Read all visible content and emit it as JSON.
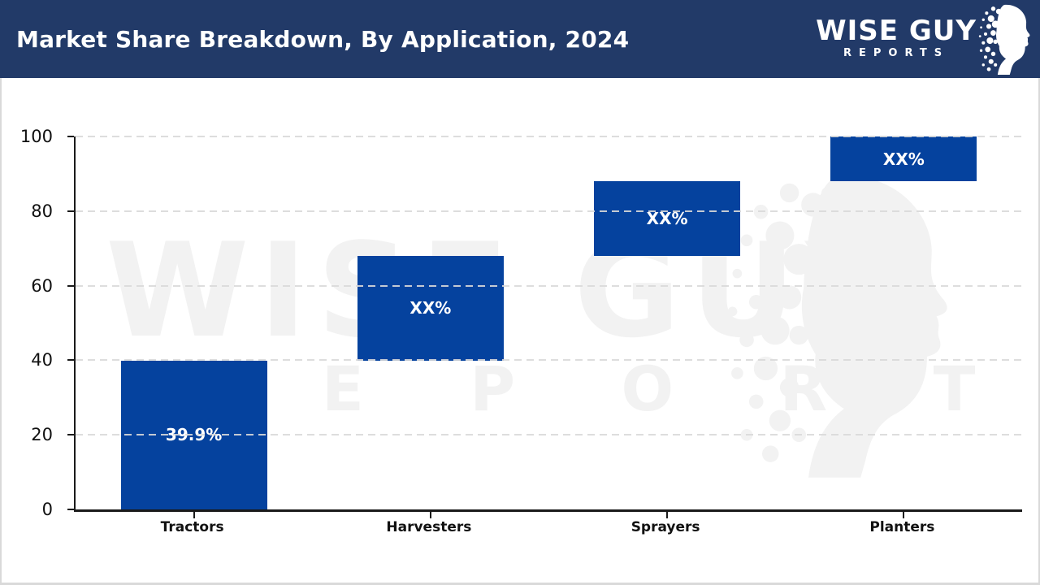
{
  "header": {
    "title": "Market Share Breakdown, By Application, 2024",
    "logo": {
      "primary": "WISE GUY",
      "secondary": "REPORTS"
    }
  },
  "watermark": {
    "primary": "WISE GUY",
    "secondary": "R E P O R T S"
  },
  "colors": {
    "header_bg": "#223a68",
    "bar": "#05429e",
    "grid": "#d9d9d9",
    "axis": "#1a1a1a",
    "bar_label": "#ffffff",
    "watermark": "#f2f2f2"
  },
  "chart_data": {
    "type": "bar",
    "variant": "waterfall",
    "title": "Market Share Breakdown, By Application, 2024",
    "categories": [
      "Tractors",
      "Harvesters",
      "Sprayers",
      "Planters"
    ],
    "segments": [
      {
        "category": "Tractors",
        "start": 0,
        "end": 39.9,
        "label": "39.9%"
      },
      {
        "category": "Harvesters",
        "start": 39.9,
        "end": 68,
        "label": "XX%"
      },
      {
        "category": "Sprayers",
        "start": 68,
        "end": 88,
        "label": "XX%"
      },
      {
        "category": "Planters",
        "start": 88,
        "end": 100,
        "label": "XX%"
      }
    ],
    "xlabel": "",
    "ylabel": "",
    "ylim": [
      0,
      100
    ],
    "yticks": [
      0,
      20,
      40,
      60,
      80,
      100
    ],
    "grid": {
      "horizontal": true,
      "style": "dashed"
    },
    "legend": "none",
    "bar_color": "#05429e"
  }
}
